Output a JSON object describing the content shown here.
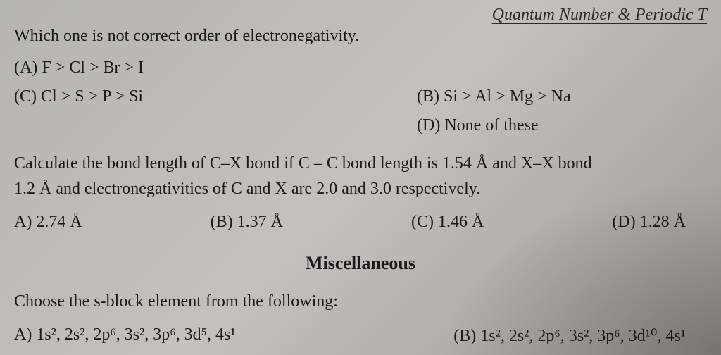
{
  "header": {
    "title": "Quantum Number & Periodic T"
  },
  "q1": {
    "stem": "Which one is not correct order of electronegativity.",
    "optA": "(A) F > Cl > Br > I",
    "optB": "(B) Si > Al > Mg > Na",
    "optC": "(C) Cl > S > P > Si",
    "optD": "(D) None of these"
  },
  "q2": {
    "stem_line1": "Calculate the bond length of C–X bond if C – C bond length is 1.54 Å and X–X bond",
    "stem_line2": "1.2 Å and electronegativities of C and X are 2.0 and 3.0 respectively.",
    "optA": "A) 2.74 Å",
    "optB": "(B) 1.37 Å",
    "optC": "(C) 1.46 Å",
    "optD": "(D) 1.28 Å"
  },
  "misc": {
    "heading": "Miscellaneous"
  },
  "q3": {
    "stem": "Choose the s-block element from the following:",
    "optA_label": "A) ",
    "optA_config": "1s², 2s², 2p⁶, 3s², 3p⁶, 3d⁵, 4s¹",
    "optB_label": "(B) ",
    "optB_config": "1s², 2s², 2p⁶, 3s², 3p⁶, 3d¹⁰, 4s¹"
  },
  "colors": {
    "text": "#1a1a1a",
    "bg_light": "#c5c0bc",
    "bg_dark": "#a09a95"
  }
}
